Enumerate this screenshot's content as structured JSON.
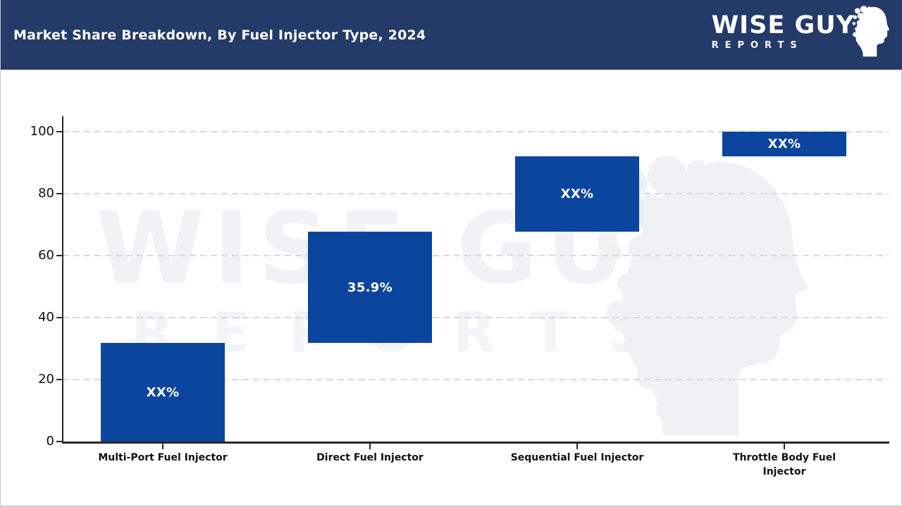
{
  "header": {
    "title": "Market Share Breakdown, By Fuel Injector Type, 2024",
    "logo_line1": "WISE GUY",
    "logo_line2": "REPORTS"
  },
  "watermark": {
    "line1": "WISE GUY",
    "line2": "REPORTS"
  },
  "colors": {
    "header_bg": "#243a69",
    "bar": "#0c459e",
    "axis": "#2a2a2a",
    "grid": "#d8d8d8",
    "watermark": "#f0f1f4"
  },
  "chart_data": {
    "type": "bar",
    "variant": "stacked-waterfall",
    "title": "Market Share Breakdown, By Fuel Injector Type, 2024",
    "categories": [
      "Multi-Port Fuel Injector",
      "Direct Fuel Injector",
      "Sequential Fuel Injector",
      "Throttle Body Fuel Injector"
    ],
    "series": [
      {
        "name": "Market Share (%)",
        "segments": [
          {
            "category": "Multi-Port Fuel Injector",
            "start": 0,
            "end": 31.8,
            "label": "XX%"
          },
          {
            "category": "Direct Fuel Injector",
            "start": 31.8,
            "end": 67.7,
            "label": "35.9%"
          },
          {
            "category": "Sequential Fuel Injector",
            "start": 67.7,
            "end": 92.1,
            "label": "XX%"
          },
          {
            "category": "Throttle Body Fuel Injector",
            "start": 92.1,
            "end": 100,
            "label": "XX%"
          }
        ]
      }
    ],
    "ylim": [
      0,
      100
    ],
    "yticks": [
      0,
      20,
      40,
      60,
      80,
      100
    ],
    "xlabel": "",
    "ylabel": "",
    "grid": "horizontal-dashed",
    "legend": "none",
    "bar_color": "#0c459e"
  }
}
